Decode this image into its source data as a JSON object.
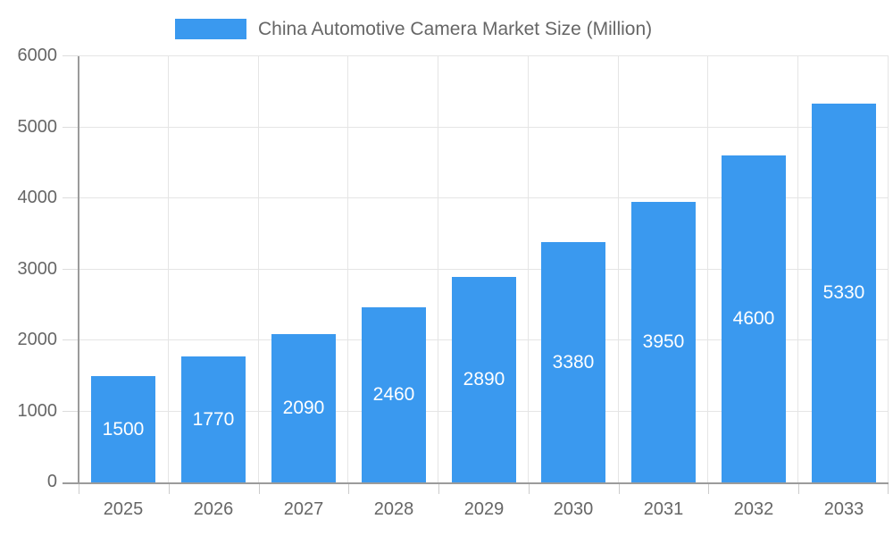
{
  "chart_data": {
    "type": "bar",
    "title": "China Automotive Camera Market Size (Million)",
    "legend": {
      "position": "top",
      "label": "China Automotive Camera Market Size (Million)"
    },
    "categories": [
      "2025",
      "2026",
      "2027",
      "2028",
      "2029",
      "2030",
      "2031",
      "2032",
      "2033"
    ],
    "values": [
      1500,
      1770,
      2090,
      2460,
      2890,
      3380,
      3950,
      4600,
      5330
    ],
    "xlabel": "",
    "ylabel": "",
    "ylim": [
      0,
      6000
    ],
    "y_ticks": [
      0,
      1000,
      2000,
      3000,
      4000,
      5000,
      6000
    ],
    "grid": "both",
    "value_labels": {
      "position": "inside-center",
      "color": "#ffffff"
    },
    "colors": {
      "bar_fill": "#3a99ef",
      "legend_text": "#666666",
      "axis_text": "#666666",
      "grid_line": "#e5e5e5",
      "y_tick_line": "#dcdcdc",
      "x_tick_line": "#cccccc",
      "axis_line": "#9b9b9b",
      "background": "#ffffff"
    }
  }
}
